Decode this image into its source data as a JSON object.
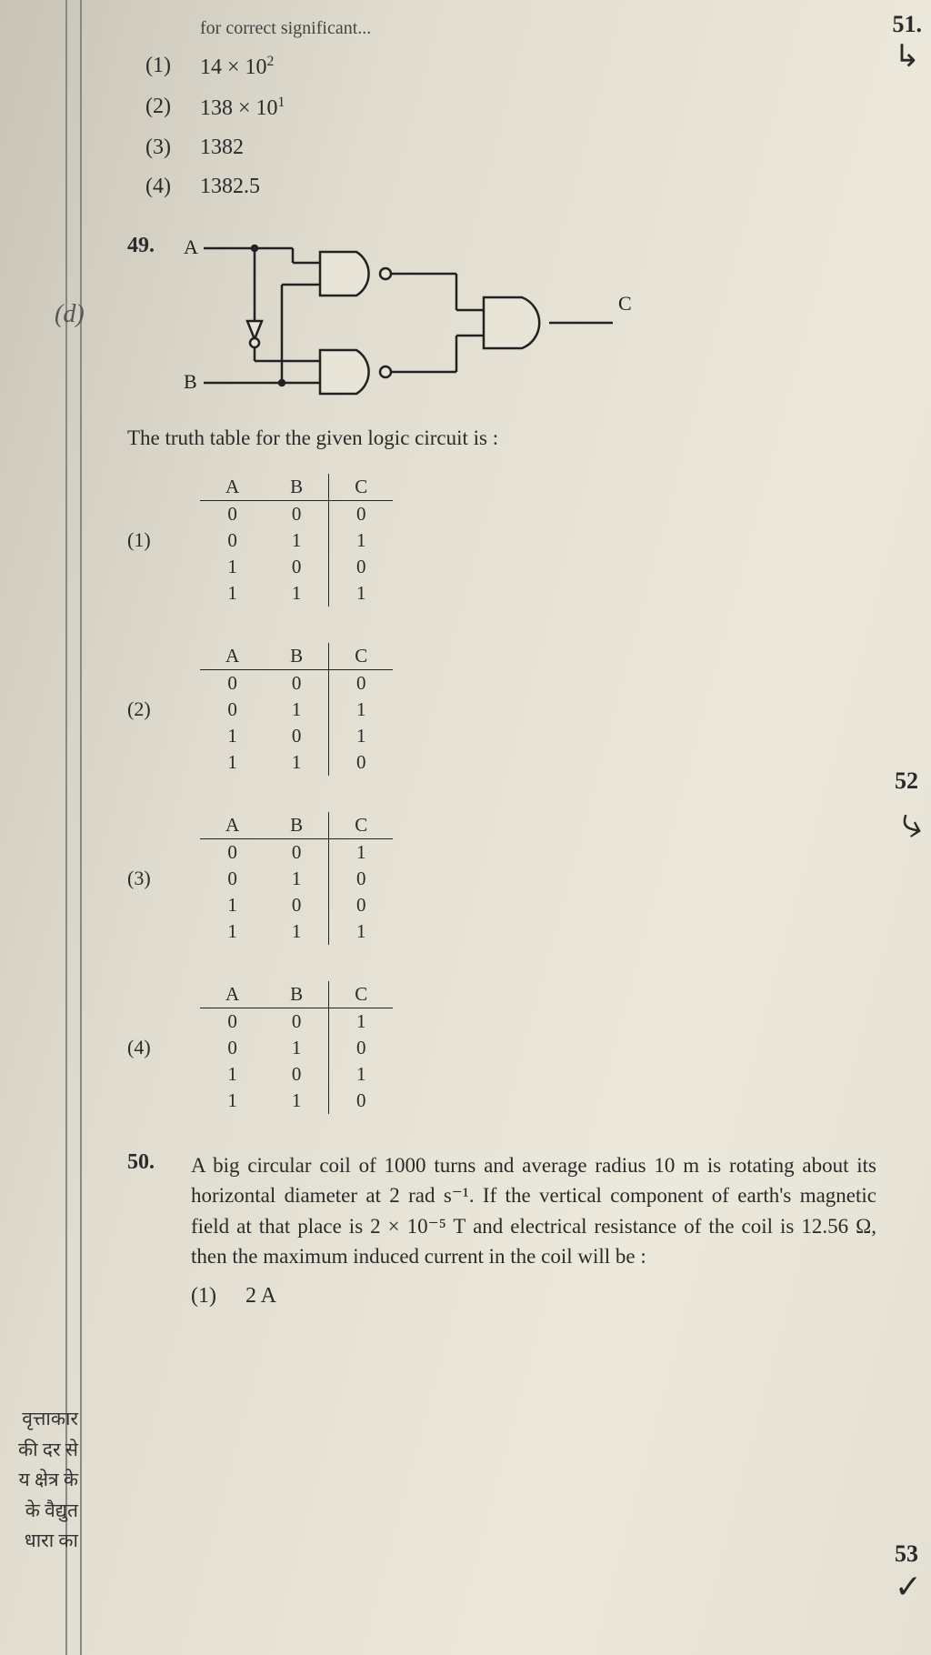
{
  "colors": {
    "ink": "#2a2a2a",
    "paper_bg": "#e4e0d4",
    "margin_line": "#888888"
  },
  "partial_header": "for correct significant...",
  "q48_options": [
    {
      "n": "(1)",
      "v": "14 × 10",
      "sup": "2"
    },
    {
      "n": "(2)",
      "v": "138 × 10",
      "sup": "1"
    },
    {
      "n": "(3)",
      "v": "1382",
      "sup": ""
    },
    {
      "n": "(4)",
      "v": "1382.5",
      "sup": ""
    }
  ],
  "q49": {
    "number": "49.",
    "labels": {
      "A": "A",
      "B": "B",
      "C": "C"
    },
    "prompt": "The truth table for the given logic circuit is :",
    "headers": [
      "A",
      "B",
      "C"
    ],
    "tables": [
      {
        "n": "(1)",
        "rows": [
          [
            "0",
            "0",
            "0"
          ],
          [
            "0",
            "1",
            "1"
          ],
          [
            "1",
            "0",
            "0"
          ],
          [
            "1",
            "1",
            "1"
          ]
        ]
      },
      {
        "n": "(2)",
        "rows": [
          [
            "0",
            "0",
            "0"
          ],
          [
            "0",
            "1",
            "1"
          ],
          [
            "1",
            "0",
            "1"
          ],
          [
            "1",
            "1",
            "0"
          ]
        ]
      },
      {
        "n": "(3)",
        "rows": [
          [
            "0",
            "0",
            "1"
          ],
          [
            "0",
            "1",
            "0"
          ],
          [
            "1",
            "0",
            "0"
          ],
          [
            "1",
            "1",
            "1"
          ]
        ]
      },
      {
        "n": "(4)",
        "rows": [
          [
            "0",
            "0",
            "1"
          ],
          [
            "0",
            "1",
            "0"
          ],
          [
            "1",
            "0",
            "1"
          ],
          [
            "1",
            "1",
            "0"
          ]
        ]
      }
    ]
  },
  "q50": {
    "number": "50.",
    "text": "A big circular coil of 1000 turns and average radius 10 m is rotating about its horizontal diameter at 2 rad s⁻¹. If the vertical component of earth's magnetic field at that place is 2 × 10⁻⁵ T and electrical resistance of the coil is 12.56 Ω, then the maximum induced current in the coil will be :",
    "opt1_n": "(1)",
    "opt1_v": "2 A"
  },
  "left_hindi": [
    "वृत्ताकार",
    "की दर से",
    "य क्षेत्र के",
    "के वैद्युत",
    "धारा का"
  ],
  "right_margin": {
    "n51": "51.",
    "n52": "52",
    "n53": "53"
  },
  "annot_d": "(d)"
}
